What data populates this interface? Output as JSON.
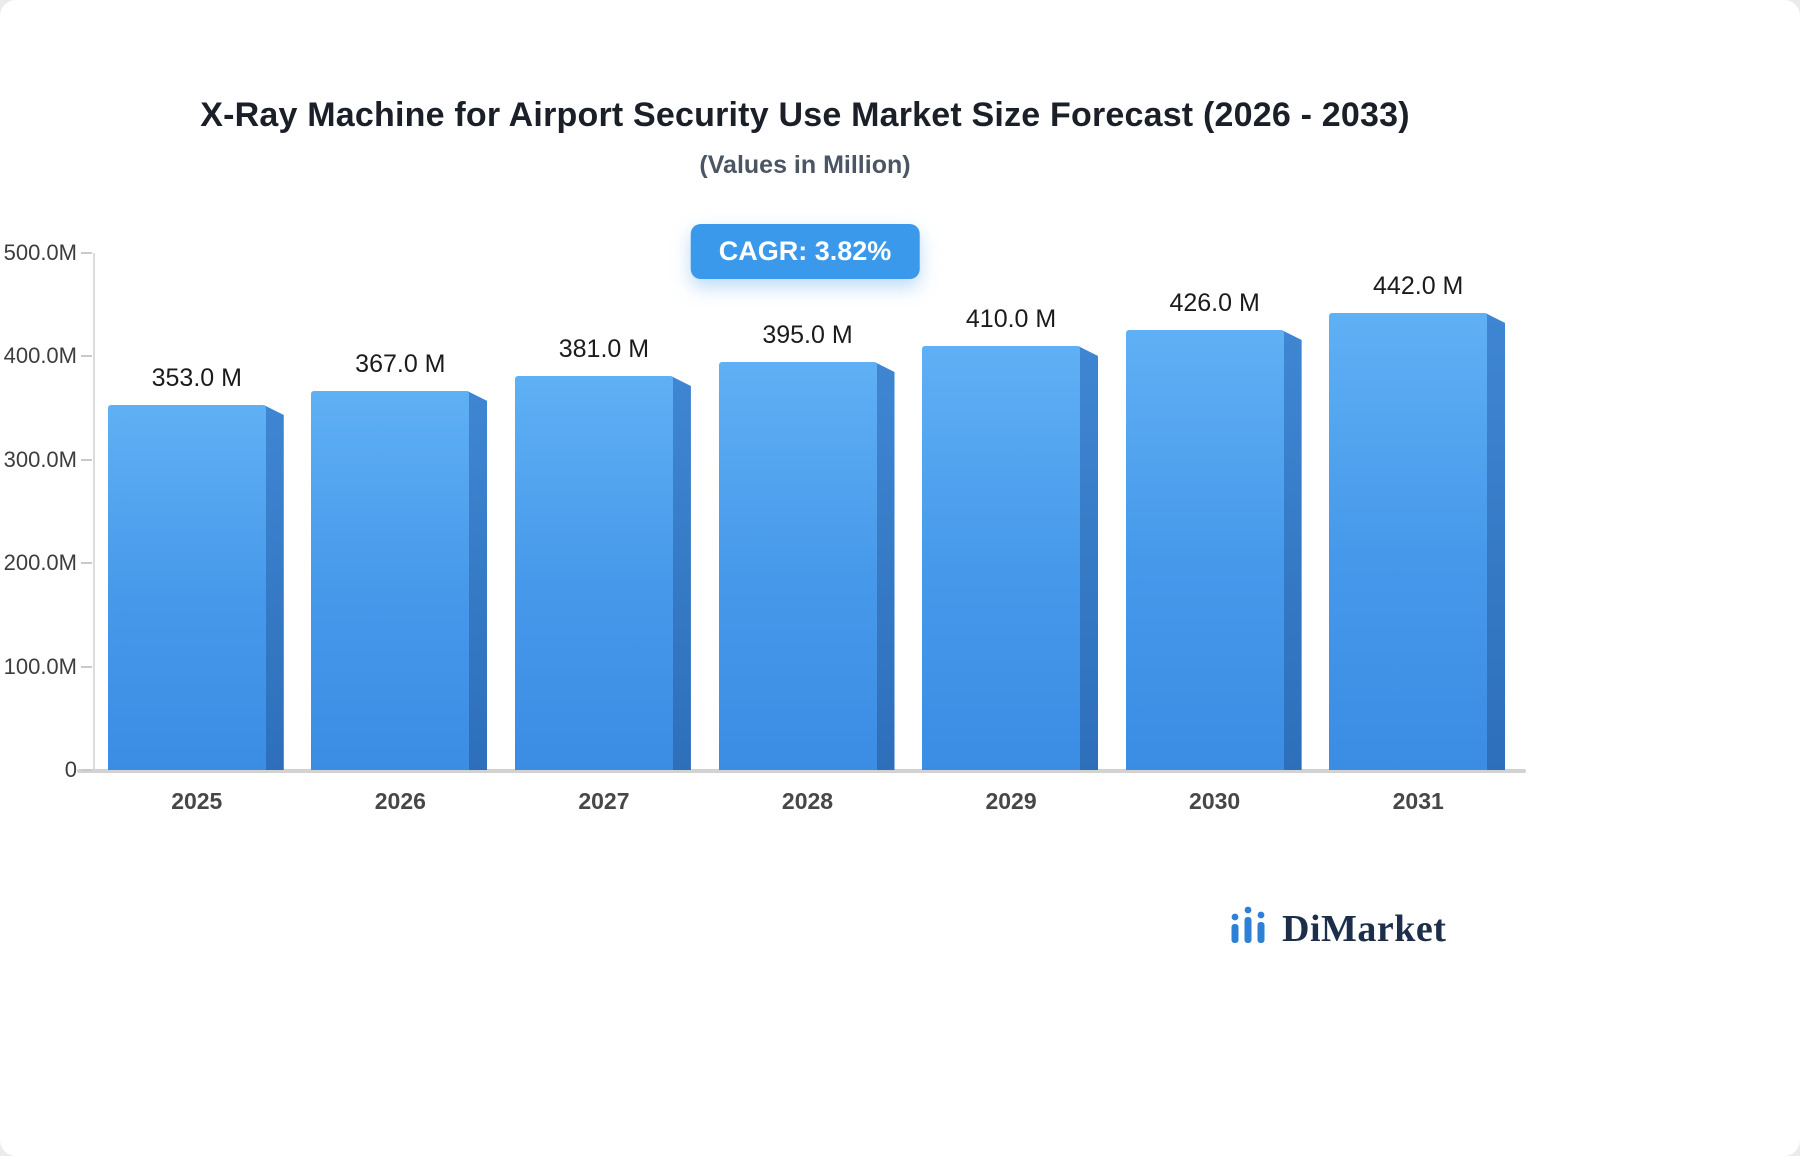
{
  "header": {
    "title": "X-Ray Machine for Airport Security Use Market Size Forecast (2026 - 2033)",
    "subtitle": "(Values in Million)"
  },
  "badge": {
    "label": "CAGR: 3.82%",
    "color": "#3b99ec"
  },
  "chart_data": {
    "type": "bar",
    "title": "X-Ray Machine for Airport Security Use Market Size Forecast (2026 - 2033)",
    "subtitle": "(Values in Million)",
    "categories": [
      "2025",
      "2026",
      "2027",
      "2028",
      "2029",
      "2030",
      "2031"
    ],
    "values": [
      353.0,
      367.0,
      381.0,
      395.0,
      410.0,
      426.0,
      442.0
    ],
    "value_labels": [
      "353.0 M",
      "367.0 M",
      "381.0 M",
      "395.0 M",
      "410.0 M",
      "426.0 M",
      "442.0 M"
    ],
    "xlabel": "",
    "ylabel": "",
    "ylim": [
      0,
      500
    ],
    "yticks": [
      {
        "value": 500,
        "label": "500.0M"
      },
      {
        "value": 400,
        "label": "400.0M"
      },
      {
        "value": 300,
        "label": "300.0M"
      },
      {
        "value": 200,
        "label": "200.0M"
      },
      {
        "value": 100,
        "label": "100.0M"
      },
      {
        "value": 0,
        "label": "0"
      }
    ],
    "grid": false,
    "legend": "none",
    "bar_color_top": "#5fb0f4",
    "bar_color_bottom": "#3b8de4",
    "bar_side_color": "#2d6fba"
  },
  "footer": {
    "brand": "DiMarket",
    "logo_icon": "bar-chart-logo-icon",
    "brand_color": "#1c2e4a",
    "accent_color": "#2e7fd6"
  }
}
